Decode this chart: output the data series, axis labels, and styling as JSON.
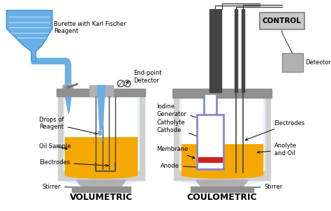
{
  "bg_color": "#ffffff",
  "title_vol": "VOLUMETRIC",
  "title_coul": "COULOMETRIC",
  "label_burette": "Burette with Karl Fischer\nReagent",
  "label_endpoint": "End-point\nDetector",
  "label_drops": "Drops of\nReagent",
  "label_oil": "Oil Sample",
  "label_electrodes_vol": "Electrodes",
  "label_stirrer_vol": "Stirrer",
  "label_iodine": "Iodine\nGenerator",
  "label_catholyte": "Catholyte\nCathode",
  "label_membrane": "Membrane",
  "label_anode": "Anode",
  "label_control": "CONTROL",
  "label_detector": "Detector",
  "label_electrodes_coul": "Electrodes",
  "label_anolyte": "Anolyte\nand Oil",
  "label_stirrer_coul": "Stirrer",
  "blue_reagent": "#6aafe6",
  "blue_dark": "#3a8fd8",
  "yellow_liquid": "#f5a800",
  "gray_metal": "#909090",
  "gray_light": "#c8c8c8",
  "gray_dark": "#707070",
  "purple_inner": "#8888cc",
  "red_membrane": "#cc2222",
  "dark_gray": "#444444",
  "white": "#ffffff",
  "silver": "#b0b0b0",
  "glass_fill": "#e8f0f8",
  "vessel_body": "#d0d0d0"
}
